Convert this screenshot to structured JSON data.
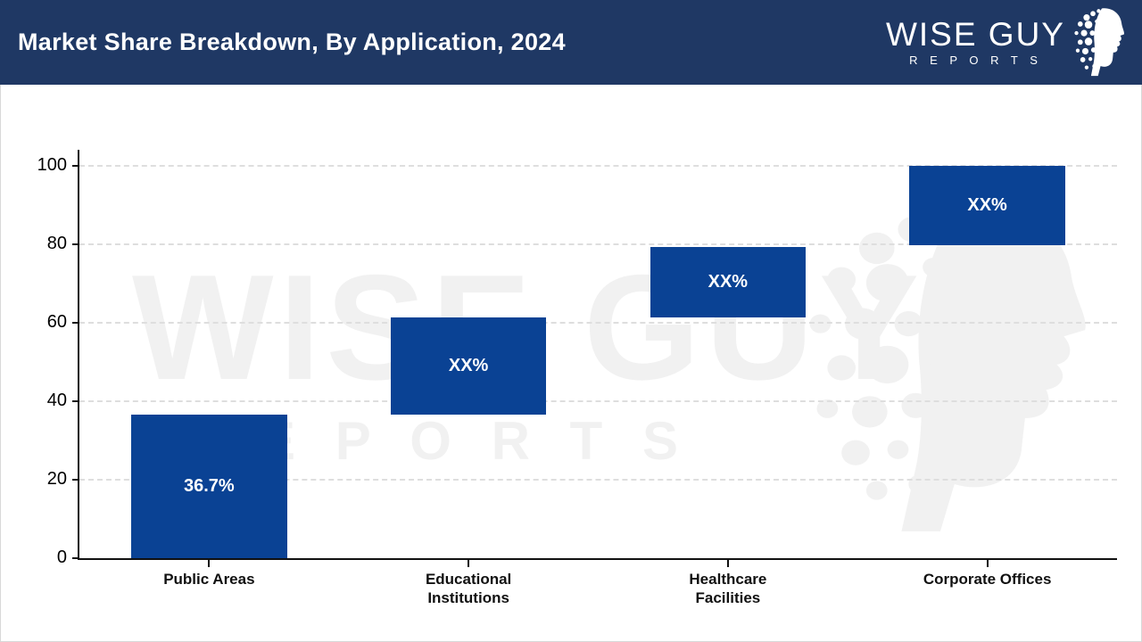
{
  "header": {
    "title": "Market Share Breakdown, By Application, 2024",
    "bg_color": "#1f3864",
    "logo_line1": "WISE GUY",
    "logo_line2": "R E P O R T S"
  },
  "watermark": {
    "line1": "WISE GUY",
    "line2": "R E P O R T S",
    "color": "#f1f1f1"
  },
  "chart_data": {
    "type": "bar",
    "subtype": "floating-waterfall",
    "title": "Market Share Breakdown, By Application, 2024",
    "xlabel": "",
    "ylabel": "",
    "ylim": [
      0,
      100
    ],
    "y_ticks": [
      0,
      20,
      40,
      60,
      80,
      100
    ],
    "grid": "dashed-horizontal",
    "legend": "none",
    "bar_color": "#0a4294",
    "bar_label_color": "#ffffff",
    "categories": [
      "Public Areas",
      "Educational Institutions",
      "Healthcare Facilities",
      "Corporate Offices"
    ],
    "bars": [
      {
        "category_lines": [
          "Public Areas"
        ],
        "label": "36.7%",
        "base": 0,
        "top": 36.7
      },
      {
        "category_lines": [
          "Educational",
          "Institutions"
        ],
        "label": "XX%",
        "base": 36.7,
        "top": 61.3
      },
      {
        "category_lines": [
          "Healthcare",
          "Facilities"
        ],
        "label": "XX%",
        "base": 61.3,
        "top": 79.4
      },
      {
        "category_lines": [
          "Corporate Offices"
        ],
        "label": "XX%",
        "base": 79.8,
        "top": 100
      }
    ]
  }
}
